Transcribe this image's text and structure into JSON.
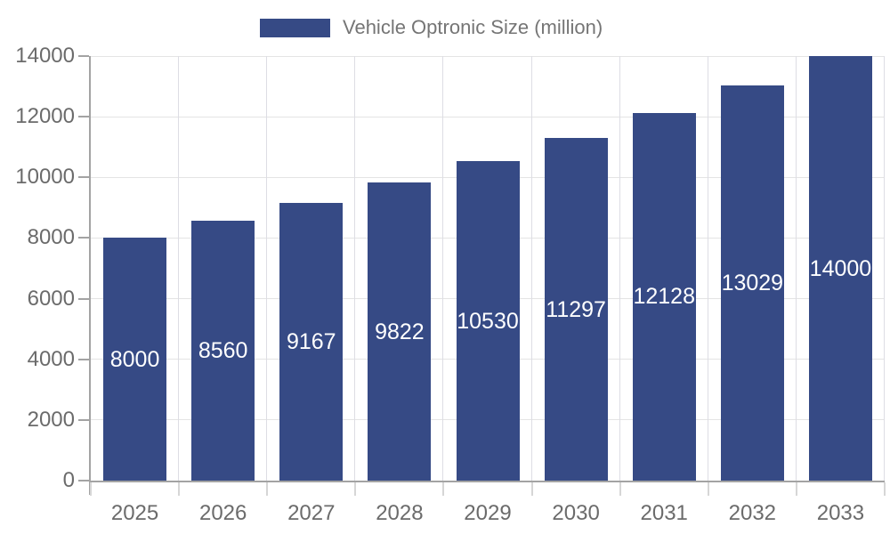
{
  "legend": {
    "label": "Vehicle Optronic Size (million)"
  },
  "chart_data": {
    "type": "bar",
    "title": "Vehicle Optronic Size (million)",
    "categories": [
      "2025",
      "2026",
      "2027",
      "2028",
      "2029",
      "2030",
      "2031",
      "2032",
      "2033"
    ],
    "values": [
      8000,
      8560,
      9167,
      9822,
      10530,
      11297,
      12128,
      13029,
      14000
    ],
    "xlabel": "",
    "ylabel": "",
    "ylim": [
      0,
      14000
    ],
    "ytick_step": 2000,
    "yticks": [
      0,
      2000,
      4000,
      6000,
      8000,
      10000,
      12000,
      14000
    ],
    "legend_entries": [
      "Vehicle Optronic Size (million)"
    ],
    "legend_position": "top",
    "grid": true,
    "colors": {
      "bar": "#364a85",
      "bar_label": "#ffffff",
      "axis_line": "#a3a3a3",
      "grid_h": "#e4e4e4",
      "grid_v": "#dddde4",
      "tick_label": "#6b6b6b",
      "legend_text": "#757575"
    }
  }
}
